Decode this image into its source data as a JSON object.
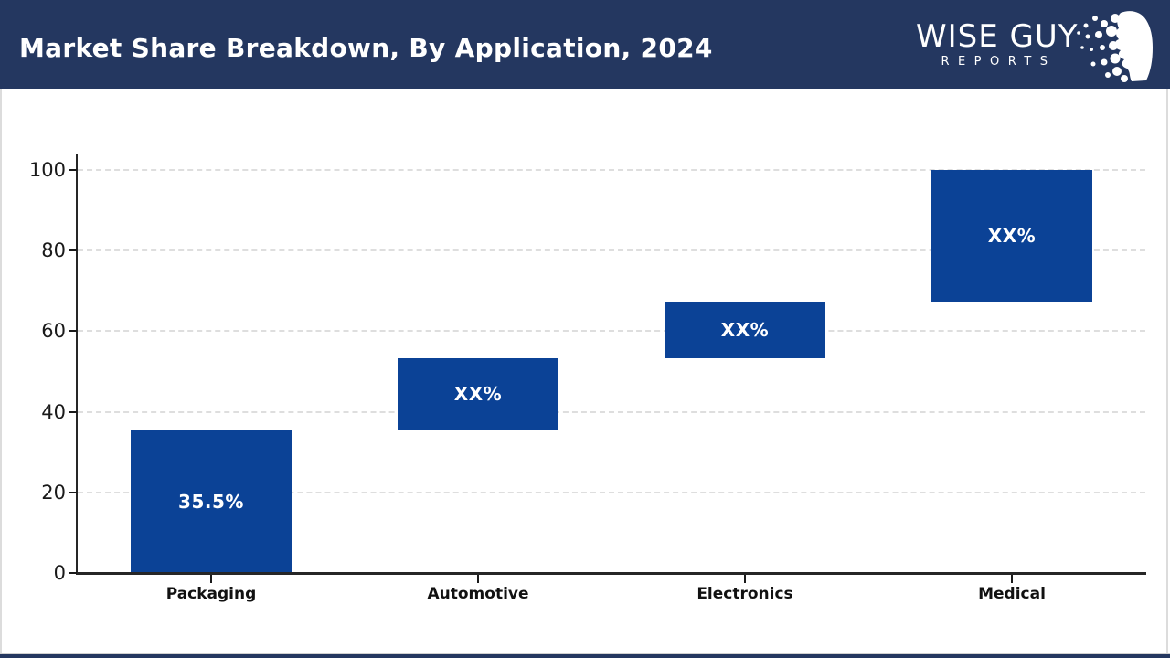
{
  "header": {
    "title": "Market Share Breakdown, By Application, 2024",
    "logo": {
      "line1": "WISE GUY",
      "line2": "REPORTS"
    }
  },
  "watermark": {
    "line1": "WISE GUY",
    "line2": "REPORTS"
  },
  "chart_data": {
    "type": "bar",
    "subtype": "floating-segment-waterfall",
    "title": "Market Share Breakdown, By Application, 2024",
    "categories": [
      "Packaging",
      "Automotive",
      "Electronics",
      "Medical"
    ],
    "segments": [
      {
        "category": "Packaging",
        "start": 0,
        "end": 35.5,
        "label": "35.5%"
      },
      {
        "category": "Automotive",
        "start": 35.5,
        "end": 53.2,
        "label": "XX%"
      },
      {
        "category": "Electronics",
        "start": 53.2,
        "end": 67.4,
        "label": "XX%"
      },
      {
        "category": "Medical",
        "start": 67.4,
        "end": 100,
        "label": "XX%"
      }
    ],
    "yticks": [
      0,
      20,
      40,
      60,
      80,
      100
    ],
    "ylim": [
      0,
      105
    ],
    "xlabel": "",
    "ylabel": "",
    "grid": "horizontal-dashed",
    "legend": "none",
    "bar_color": "#0b4296",
    "bar_label_color": "#ffffff"
  },
  "colors": {
    "header_bg": "#243760",
    "footer_bg": "#243760",
    "bar_blue": "#0b4296",
    "grid_gray": "#dedede",
    "axis_black": "#262626",
    "watermark_gray": "#f0f0f1",
    "frame_border": "#dcdcdc"
  }
}
